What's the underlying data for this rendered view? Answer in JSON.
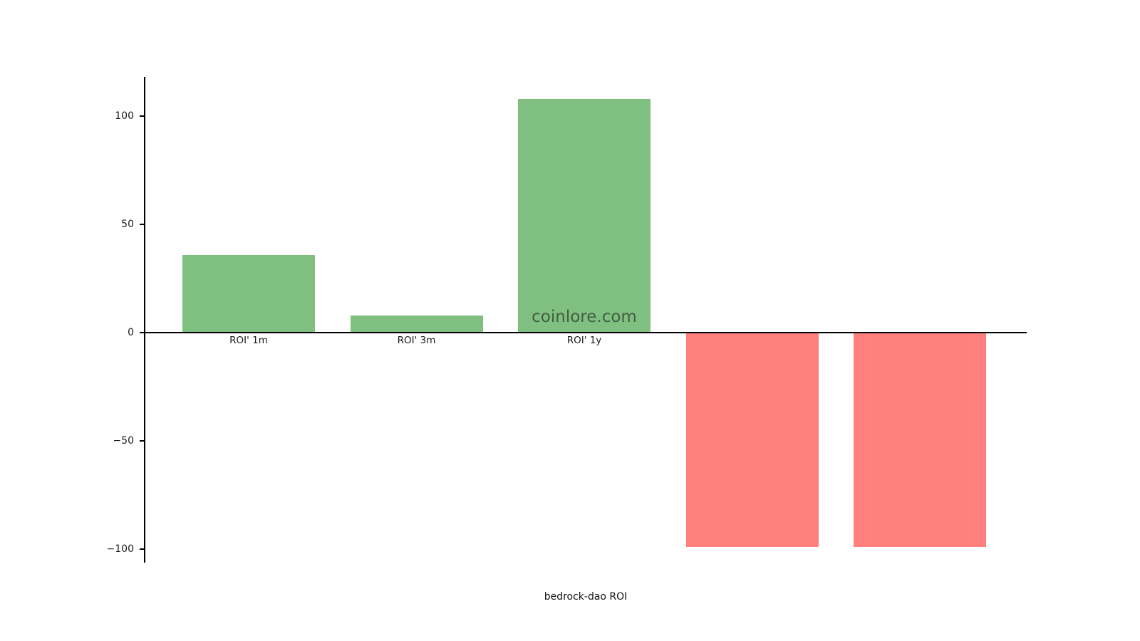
{
  "watermark": {
    "text": "coinlore.com"
  },
  "chart_data": {
    "type": "bar",
    "title": "bedrock-dao ROI",
    "xlabel": "",
    "ylabel": "",
    "categories": [
      "ROI' 1m",
      "ROI' 3m",
      "ROI' 1y",
      "",
      ""
    ],
    "values": [
      36,
      8,
      108,
      -99,
      -99
    ],
    "bar_colors": [
      "#7fbf7f",
      "#7fbf7f",
      "#7fbf7f",
      "#ff7f7f",
      "#ff7f7f"
    ],
    "positive_color": "#7fbf7f",
    "negative_color": "#ff7f7f",
    "yticks": [
      100,
      50,
      0,
      -50,
      -100
    ],
    "ytick_labels": [
      "100",
      "50",
      "0",
      "−50",
      "−100"
    ],
    "ylim": [
      -106,
      118
    ],
    "grid": false,
    "legend_position": "none",
    "x_axis_position": "zero"
  }
}
